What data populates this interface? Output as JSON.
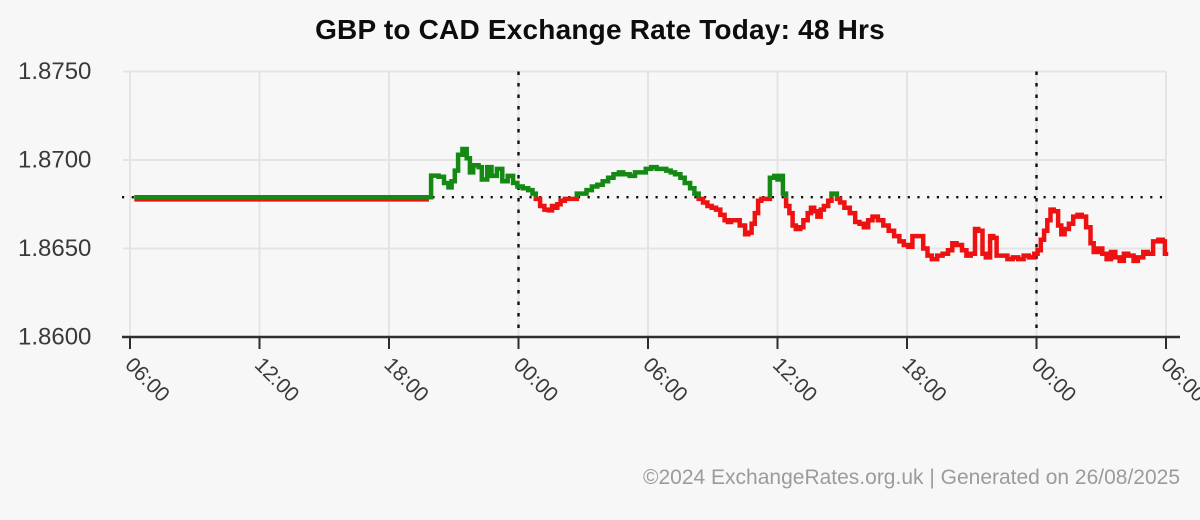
{
  "title": "GBP to CAD Exchange Rate Today: 48 Hrs",
  "footer": "©2024 ExchangeRates.org.uk | Generated on 26/08/2025",
  "chart_data": {
    "type": "line",
    "title": "GBP to CAD Exchange Rate Today: 48 Hrs",
    "currency_pair": "GBP/CAD",
    "period": "48 Hrs",
    "open_rate": 1.8679,
    "y_ticks": [
      "1.8750",
      "1.8700",
      "1.8650",
      "1.8600"
    ],
    "y_range": [
      1.86,
      1.875
    ],
    "x_ticks": [
      "06:00",
      "12:00",
      "18:00",
      "00:00",
      "06:00",
      "12:00",
      "18:00",
      "00:00",
      "06:00"
    ],
    "x_tick_hours": [
      0,
      6,
      12,
      18,
      24,
      30,
      36,
      42,
      48
    ],
    "x_range_hours": [
      0,
      48
    ],
    "midnight_vlines_hours": [
      18,
      42
    ],
    "flat_underline_hours": [
      0.2,
      13.85
    ],
    "grid": true,
    "legend": "none",
    "colors": {
      "above_open": "#148a14",
      "below_open": "#ee1111",
      "dotted_reference": "#0f0f0f",
      "gridline": "#e4e4e4",
      "axis": "#2e2e2e",
      "tick_text": "#3a3a3a"
    },
    "series": [
      {
        "name": "GBP/CAD rate",
        "points": [
          [
            0.2,
            1.8679
          ],
          [
            13.85,
            1.8679
          ],
          [
            13.95,
            1.86912
          ],
          [
            14.3,
            1.86905
          ],
          [
            14.55,
            1.8687
          ],
          [
            14.75,
            1.86845
          ],
          [
            14.9,
            1.8688
          ],
          [
            15.05,
            1.8694
          ],
          [
            15.2,
            1.8703
          ],
          [
            15.4,
            1.87062
          ],
          [
            15.6,
            1.8701
          ],
          [
            15.75,
            1.8693
          ],
          [
            15.9,
            1.8697
          ],
          [
            16.15,
            1.8696
          ],
          [
            16.3,
            1.8689
          ],
          [
            16.55,
            1.8696
          ],
          [
            16.75,
            1.8691
          ],
          [
            17.0,
            1.8695
          ],
          [
            17.25,
            1.8688
          ],
          [
            17.5,
            1.8691
          ],
          [
            17.75,
            1.8687
          ],
          [
            17.95,
            1.8685
          ],
          [
            18.2,
            1.8684
          ],
          [
            18.45,
            1.8683
          ],
          [
            18.65,
            1.8681
          ],
          [
            18.8,
            1.8678
          ],
          [
            19.0,
            1.8674
          ],
          [
            19.2,
            1.8672
          ],
          [
            19.4,
            1.86715
          ],
          [
            19.55,
            1.8674
          ],
          [
            19.65,
            1.8673
          ],
          [
            19.8,
            1.8675
          ],
          [
            19.95,
            1.8677
          ],
          [
            20.15,
            1.8678
          ],
          [
            20.55,
            1.8678
          ],
          [
            20.7,
            1.8681
          ],
          [
            20.95,
            1.8681
          ],
          [
            21.15,
            1.8683
          ],
          [
            21.4,
            1.8685
          ],
          [
            21.65,
            1.8686
          ],
          [
            21.9,
            1.8688
          ],
          [
            22.15,
            1.869
          ],
          [
            22.4,
            1.8692
          ],
          [
            22.65,
            1.8693
          ],
          [
            22.85,
            1.8692
          ],
          [
            23.15,
            1.8691
          ],
          [
            23.4,
            1.8693
          ],
          [
            23.65,
            1.8693
          ],
          [
            23.9,
            1.8695
          ],
          [
            24.15,
            1.8696
          ],
          [
            24.4,
            1.8695
          ],
          [
            24.65,
            1.8695
          ],
          [
            24.85,
            1.8694
          ],
          [
            25.05,
            1.8693
          ],
          [
            25.25,
            1.8692
          ],
          [
            25.5,
            1.869
          ],
          [
            25.7,
            1.8687
          ],
          [
            25.95,
            1.8684
          ],
          [
            26.15,
            1.8681
          ],
          [
            26.35,
            1.8678
          ],
          [
            26.55,
            1.8676
          ],
          [
            26.75,
            1.8674
          ],
          [
            26.95,
            1.8673
          ],
          [
            27.15,
            1.8672
          ],
          [
            27.35,
            1.8669
          ],
          [
            27.55,
            1.8666
          ],
          [
            27.7,
            1.8665
          ],
          [
            27.85,
            1.8666
          ],
          [
            28.05,
            1.8666
          ],
          [
            28.25,
            1.8663
          ],
          [
            28.5,
            1.8658
          ],
          [
            28.65,
            1.8659
          ],
          [
            28.8,
            1.8664
          ],
          [
            28.95,
            1.867
          ],
          [
            29.1,
            1.8677
          ],
          [
            29.25,
            1.8678
          ],
          [
            29.5,
            1.8678
          ],
          [
            29.65,
            1.869
          ],
          [
            29.85,
            1.8691
          ],
          [
            30.0,
            1.8689
          ],
          [
            30.1,
            1.8691
          ],
          [
            30.25,
            1.8681
          ],
          [
            30.4,
            1.8674
          ],
          [
            30.55,
            1.867
          ],
          [
            30.7,
            1.8663
          ],
          [
            30.85,
            1.8661
          ],
          [
            31.05,
            1.8662
          ],
          [
            31.2,
            1.8666
          ],
          [
            31.4,
            1.867
          ],
          [
            31.55,
            1.8673
          ],
          [
            31.7,
            1.8671
          ],
          [
            31.85,
            1.8668
          ],
          [
            32.0,
            1.8672
          ],
          [
            32.15,
            1.8674
          ],
          [
            32.35,
            1.8677
          ],
          [
            32.5,
            1.8681
          ],
          [
            32.65,
            1.8681
          ],
          [
            32.75,
            1.8678
          ],
          [
            32.9,
            1.8676
          ],
          [
            33.1,
            1.8673
          ],
          [
            33.35,
            1.867
          ],
          [
            33.6,
            1.8665
          ],
          [
            33.8,
            1.8664
          ],
          [
            34.0,
            1.8662
          ],
          [
            34.2,
            1.8666
          ],
          [
            34.4,
            1.8668
          ],
          [
            34.65,
            1.8666
          ],
          [
            34.9,
            1.8663
          ],
          [
            35.15,
            1.866
          ],
          [
            35.4,
            1.8657
          ],
          [
            35.65,
            1.8654
          ],
          [
            35.85,
            1.8652
          ],
          [
            36.05,
            1.8651
          ],
          [
            36.25,
            1.8657
          ],
          [
            36.55,
            1.8657
          ],
          [
            36.75,
            1.865
          ],
          [
            36.95,
            1.8646
          ],
          [
            37.15,
            1.8644
          ],
          [
            37.4,
            1.8646
          ],
          [
            37.65,
            1.8647
          ],
          [
            37.9,
            1.8649
          ],
          [
            38.1,
            1.8653
          ],
          [
            38.3,
            1.8652
          ],
          [
            38.55,
            1.8649
          ],
          [
            38.75,
            1.8646
          ],
          [
            38.95,
            1.8647
          ],
          [
            39.15,
            1.8661
          ],
          [
            39.3,
            1.866
          ],
          [
            39.5,
            1.8647
          ],
          [
            39.65,
            1.8645
          ],
          [
            39.85,
            1.8657
          ],
          [
            40.0,
            1.8656
          ],
          [
            40.15,
            1.8646
          ],
          [
            40.4,
            1.8646
          ],
          [
            40.65,
            1.8644
          ],
          [
            40.9,
            1.8645
          ],
          [
            41.15,
            1.8644
          ],
          [
            41.4,
            1.8646
          ],
          [
            41.65,
            1.8645
          ],
          [
            41.9,
            1.8647
          ],
          [
            42.05,
            1.8649
          ],
          [
            42.2,
            1.8655
          ],
          [
            42.35,
            1.866
          ],
          [
            42.5,
            1.8666
          ],
          [
            42.65,
            1.8672
          ],
          [
            42.8,
            1.8671
          ],
          [
            43.0,
            1.8663
          ],
          [
            43.15,
            1.8658
          ],
          [
            43.3,
            1.8661
          ],
          [
            43.5,
            1.8664
          ],
          [
            43.7,
            1.8668
          ],
          [
            43.9,
            1.8669
          ],
          [
            44.1,
            1.8668
          ],
          [
            44.3,
            1.8662
          ],
          [
            44.5,
            1.8653
          ],
          [
            44.65,
            1.8648
          ],
          [
            44.85,
            1.865
          ],
          [
            45.05,
            1.8647
          ],
          [
            45.25,
            1.8644
          ],
          [
            45.45,
            1.8648
          ],
          [
            45.65,
            1.8645
          ],
          [
            45.85,
            1.8643
          ],
          [
            46.05,
            1.8647
          ],
          [
            46.25,
            1.8646
          ],
          [
            46.5,
            1.8643
          ],
          [
            46.7,
            1.8645
          ],
          [
            46.95,
            1.8648
          ],
          [
            47.15,
            1.8647
          ],
          [
            47.4,
            1.8654
          ],
          [
            47.65,
            1.8655
          ],
          [
            47.85,
            1.8654
          ],
          [
            47.95,
            1.8647
          ],
          [
            48.0,
            1.8648
          ]
        ]
      }
    ]
  }
}
